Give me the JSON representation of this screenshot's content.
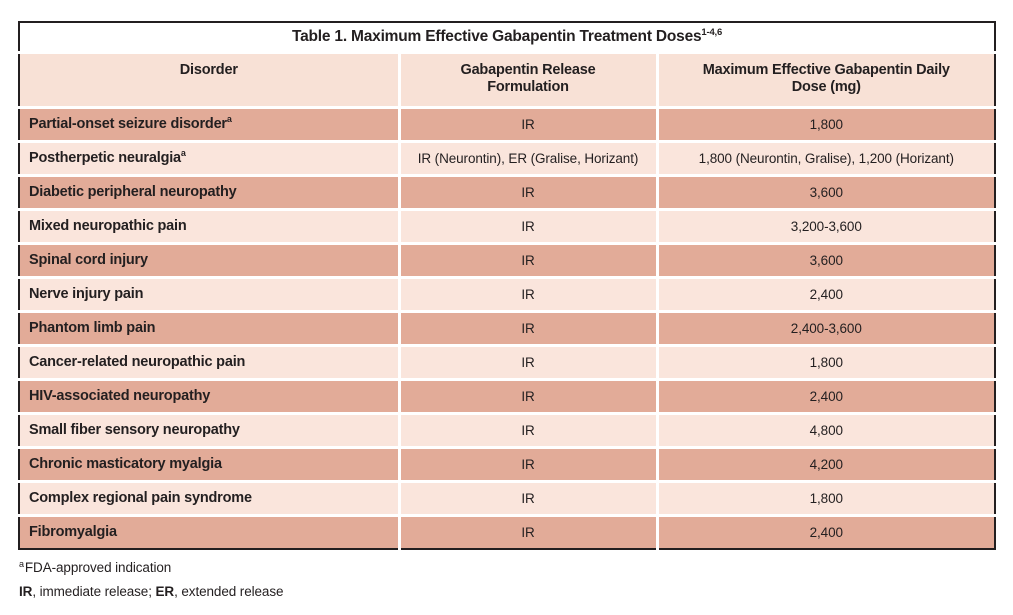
{
  "table": {
    "title": {
      "text": "Table 1. Maximum Effective Gabapentin Treatment Doses",
      "superscript": "1-4,6"
    },
    "columns": [
      {
        "lines": [
          "Disorder"
        ]
      },
      {
        "lines": [
          "Gabapentin Release",
          "Formulation"
        ]
      },
      {
        "lines": [
          "Maximum Effective Gabapentin Daily",
          "Dose (mg)"
        ]
      }
    ],
    "rows": [
      {
        "disorder": "Partial-onset seizure disorder",
        "disorder_sup": "a",
        "formulation": "IR",
        "dose": "1,800"
      },
      {
        "disorder": "Postherpetic neuralgia",
        "disorder_sup": "a",
        "formulation": "IR (Neurontin), ER (Gralise, Horizant)",
        "dose": "1,800 (Neurontin, Gralise), 1,200 (Horizant)"
      },
      {
        "disorder": "Diabetic peripheral neuropathy",
        "disorder_sup": "",
        "formulation": "IR",
        "dose": "3,600"
      },
      {
        "disorder": "Mixed neuropathic pain",
        "disorder_sup": "",
        "formulation": "IR",
        "dose": "3,200-3,600"
      },
      {
        "disorder": "Spinal cord injury",
        "disorder_sup": "",
        "formulation": "IR",
        "dose": "3,600"
      },
      {
        "disorder": "Nerve injury pain",
        "disorder_sup": "",
        "formulation": "IR",
        "dose": "2,400"
      },
      {
        "disorder": "Phantom limb pain",
        "disorder_sup": "",
        "formulation": "IR",
        "dose": "2,400-3,600"
      },
      {
        "disorder": "Cancer-related neuropathic pain",
        "disorder_sup": "",
        "formulation": "IR",
        "dose": "1,800"
      },
      {
        "disorder": "HIV-associated neuropathy",
        "disorder_sup": "",
        "formulation": "IR",
        "dose": "2,400"
      },
      {
        "disorder": "Small fiber sensory neuropathy",
        "disorder_sup": "",
        "formulation": "IR",
        "dose": "4,800"
      },
      {
        "disorder": "Chronic masticatory myalgia",
        "disorder_sup": "",
        "formulation": "IR",
        "dose": "4,200"
      },
      {
        "disorder": "Complex regional pain syndrome",
        "disorder_sup": "",
        "formulation": "IR",
        "dose": "1,800"
      },
      {
        "disorder": "Fibromyalgia",
        "disorder_sup": "",
        "formulation": "IR",
        "dose": "2,400"
      }
    ]
  },
  "footnotes": {
    "fda": {
      "superscript": "a",
      "text": "FDA-approved indication"
    },
    "abbrev": {
      "segments": [
        {
          "text": "IR",
          "bold": true
        },
        {
          "text": ", immediate release; ",
          "bold": false
        },
        {
          "text": "ER",
          "bold": true
        },
        {
          "text": ", extended release",
          "bold": false
        }
      ]
    }
  },
  "colors": {
    "row_dark": "#e2ab98",
    "row_light": "#fae5dc",
    "header_bg": "#f8e1d6",
    "text": "#231f20",
    "grid_line": "#ffffff",
    "outer_border": "#231f20"
  }
}
